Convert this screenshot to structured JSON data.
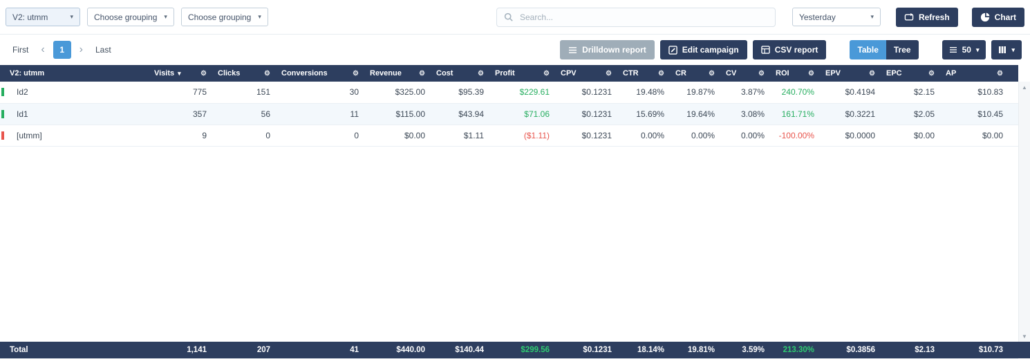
{
  "colors": {
    "navy": "#2d3e5f",
    "accent_blue": "#4a99d8",
    "positive_green": "#27ae60",
    "positive_green_on_dark": "#2ecc71",
    "negative_red": "#e8554d",
    "disabled_gray": "#9fadb8"
  },
  "toolbar": {
    "campaign_select": "V2: utmm",
    "grouping_1": "Choose grouping",
    "grouping_2": "Choose grouping",
    "search_placeholder": "Search...",
    "date_range": "Yesterday",
    "refresh": "Refresh",
    "chart": "Chart"
  },
  "pagination": {
    "first": "First",
    "current_page": "1",
    "last": "Last"
  },
  "actions": {
    "drilldown": "Drilldown report",
    "edit_campaign": "Edit campaign",
    "csv": "CSV report",
    "view_table": "Table",
    "view_tree": "Tree",
    "rows_per_page": "50"
  },
  "table": {
    "name_column": "V2: utmm",
    "sorted_column": "Visits",
    "columns": [
      "Visits",
      "Clicks",
      "Conversions",
      "Revenue",
      "Cost",
      "Profit",
      "CPV",
      "CTR",
      "CR",
      "CV",
      "ROI",
      "EPV",
      "EPC",
      "AP"
    ],
    "rows": [
      {
        "status": "green",
        "name": "Id2",
        "cells": [
          "775",
          "151",
          "30",
          "$325.00",
          "$95.39",
          "$229.61",
          "$0.1231",
          "19.48%",
          "19.87%",
          "3.87%",
          "240.70%",
          "$0.4194",
          "$2.15",
          "$10.83"
        ],
        "profit_state": "positive",
        "roi_state": "positive"
      },
      {
        "status": "green",
        "name": "Id1",
        "cells": [
          "357",
          "56",
          "11",
          "$115.00",
          "$43.94",
          "$71.06",
          "$0.1231",
          "15.69%",
          "19.64%",
          "3.08%",
          "161.71%",
          "$0.3221",
          "$2.05",
          "$10.45"
        ],
        "profit_state": "positive",
        "roi_state": "positive"
      },
      {
        "status": "red",
        "name": "[utmm]",
        "cells": [
          "9",
          "0",
          "0",
          "$0.00",
          "$1.11",
          "($1.11)",
          "$0.1231",
          "0.00%",
          "0.00%",
          "0.00%",
          "-100.00%",
          "$0.0000",
          "$0.00",
          "$0.00"
        ],
        "profit_state": "negative",
        "roi_state": "negative"
      }
    ],
    "total": {
      "label": "Total",
      "cells": [
        "1,141",
        "207",
        "41",
        "$440.00",
        "$140.44",
        "$299.56",
        "$0.1231",
        "18.14%",
        "19.81%",
        "3.59%",
        "213.30%",
        "$0.3856",
        "$2.13",
        "$10.73"
      ],
      "profit_state": "positive",
      "roi_state": "positive"
    }
  }
}
